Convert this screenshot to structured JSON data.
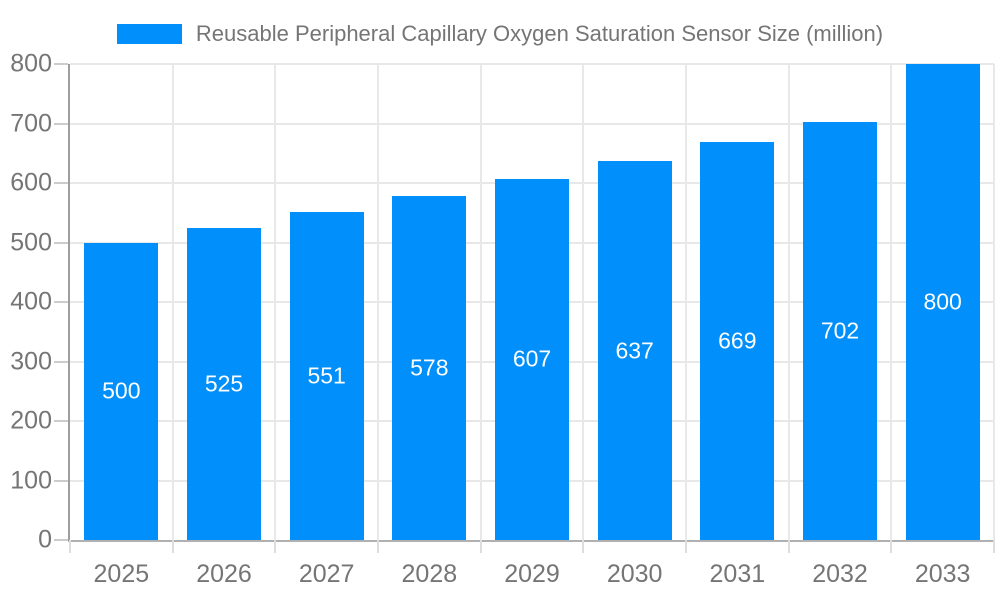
{
  "legend": {
    "label": "Reusable Peripheral Capillary Oxygen Saturation Sensor Size (million)",
    "swatch_color": "#008FFB"
  },
  "chart_data": {
    "type": "bar",
    "title": "",
    "categories": [
      "2025",
      "2026",
      "2027",
      "2028",
      "2029",
      "2030",
      "2031",
      "2032",
      "2033"
    ],
    "series": [
      {
        "name": "Reusable Peripheral Capillary Oxygen Saturation Sensor Size (million)",
        "values": [
          500,
          525,
          551,
          578,
          607,
          637,
          669,
          702,
          800
        ]
      }
    ],
    "values": [
      500,
      525,
      551,
      578,
      607,
      637,
      669,
      702,
      800
    ],
    "bar_value_labels": [
      "500",
      "525",
      "551",
      "578",
      "607",
      "637",
      "669",
      "702",
      "800"
    ],
    "xlabel": "",
    "ylabel": "",
    "ylim": [
      0,
      800
    ],
    "yticks": [
      0,
      100,
      200,
      300,
      400,
      500,
      600,
      700,
      800
    ],
    "grid": true,
    "legend_position": "top"
  },
  "colors": {
    "bar": "#008FFB",
    "bar_label": "#ffffff",
    "axis_label": "#757575",
    "legend_label": "#757575",
    "gridline": "#e8e8e8",
    "axis_line": "#9e9e9e",
    "background": "#ffffff"
  }
}
